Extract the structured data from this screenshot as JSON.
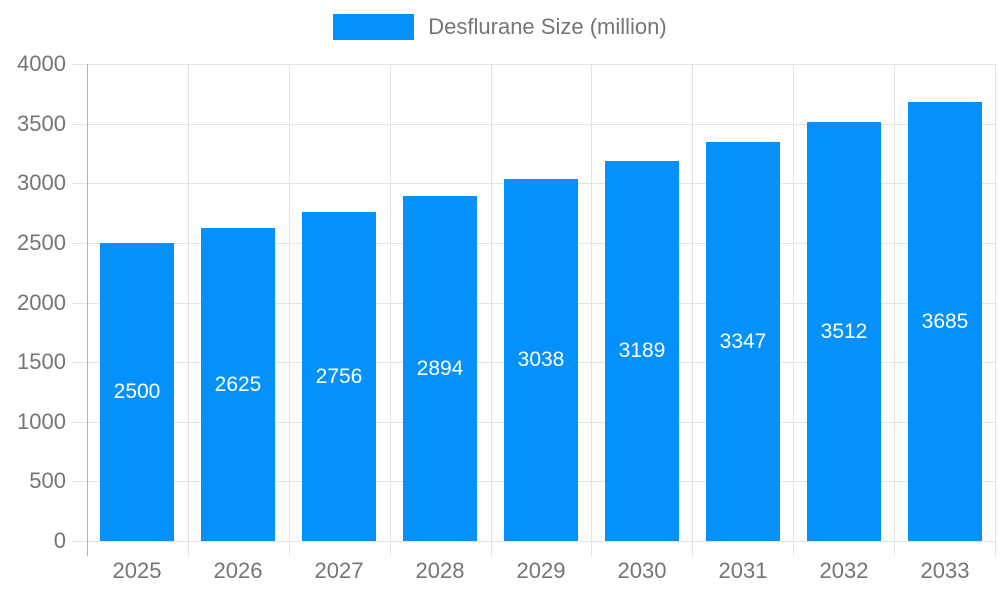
{
  "legend": {
    "label": "Desflurane Size (million)"
  },
  "chart_data": {
    "type": "bar",
    "title": "",
    "categories": [
      "2025",
      "2026",
      "2027",
      "2028",
      "2029",
      "2030",
      "2031",
      "2032",
      "2033"
    ],
    "series": [
      {
        "name": "Desflurane Size (million)",
        "values": [
          2500,
          2625,
          2756,
          2894,
          3038,
          3189,
          3347,
          3512,
          3685
        ],
        "color": "#0591fb"
      }
    ],
    "xlabel": "",
    "ylabel": "",
    "ylim": [
      0,
      4000
    ],
    "yticks": [
      0,
      500,
      1000,
      1500,
      2000,
      2500,
      3000,
      3500,
      4000
    ],
    "grid": true,
    "legend_position": "top",
    "value_labels": {
      "show": true,
      "position": "center-of-bar",
      "color": "#ffffff"
    }
  },
  "colors": {
    "bar": "#0591fb",
    "axis_text": "#757575",
    "gridline": "#e3e3e3",
    "axis_line": "#b3b3b3",
    "background": "#ffffff",
    "value_label": "#ffffff"
  }
}
